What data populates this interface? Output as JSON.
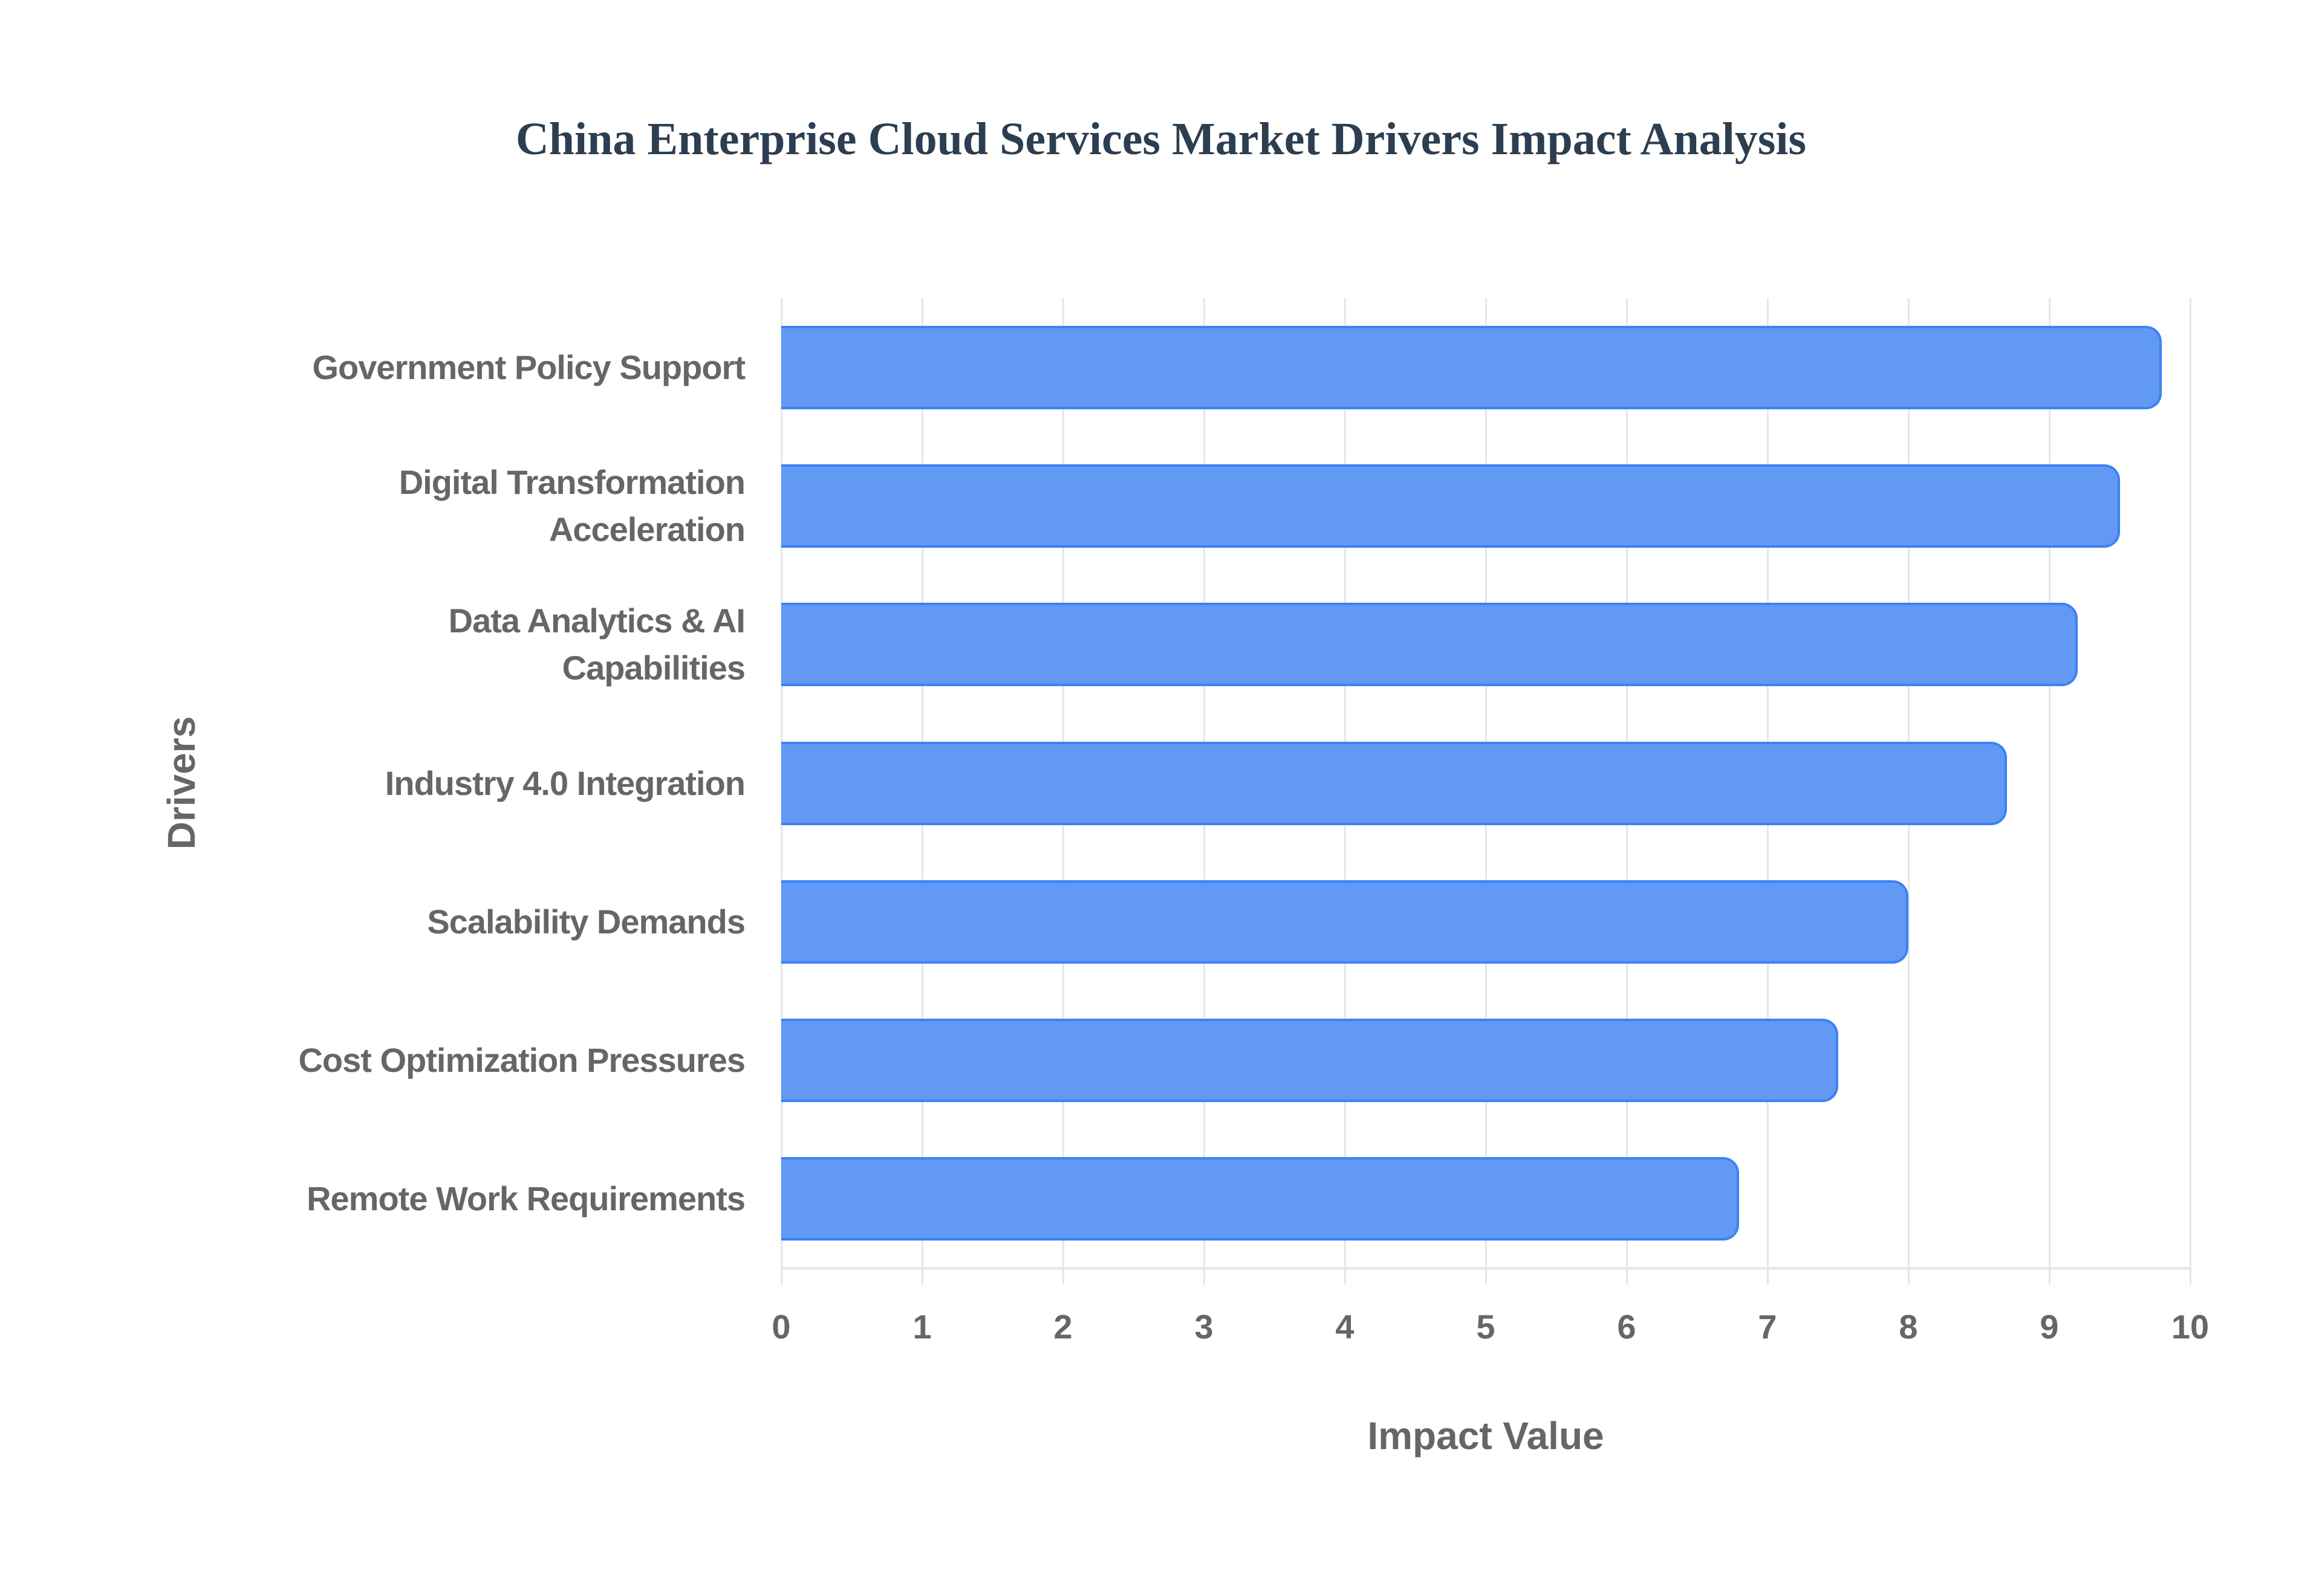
{
  "title": "China Enterprise Cloud Services Market Drivers Impact Analysis",
  "colors": {
    "title": "#2c3e50",
    "bar_fill": "#6199f4",
    "bar_border": "#3b82f6",
    "axis_text": "#666666",
    "grid": "#e6e6e6"
  },
  "axes": {
    "x_title": "Impact Value",
    "y_title": "Drivers",
    "x_ticks": [
      "0",
      "1",
      "2",
      "3",
      "4",
      "5",
      "6",
      "7",
      "8",
      "9",
      "10"
    ]
  },
  "chart_data": {
    "type": "bar",
    "orientation": "horizontal",
    "title": "China Enterprise Cloud Services Market Drivers Impact Analysis",
    "xlabel": "Impact Value",
    "ylabel": "Drivers",
    "xlim": [
      0,
      10
    ],
    "grid": true,
    "legend": null,
    "categories": [
      "Government Policy Support",
      "Digital Transformation Acceleration",
      "Data Analytics & AI Capabilities",
      "Industry 4.0 Integration",
      "Scalability Demands",
      "Cost Optimization Pressures",
      "Remote Work Requirements"
    ],
    "category_display_lines": [
      [
        "Government Policy Support"
      ],
      [
        "Digital Transformation",
        "Acceleration"
      ],
      [
        "Data Analytics & AI",
        "Capabilities"
      ],
      [
        "Industry 4.0 Integration"
      ],
      [
        "Scalability Demands"
      ],
      [
        "Cost Optimization Pressures"
      ],
      [
        "Remote Work Requirements"
      ]
    ],
    "values": [
      9.8,
      9.5,
      9.2,
      8.7,
      8.0,
      7.5,
      6.8
    ]
  }
}
